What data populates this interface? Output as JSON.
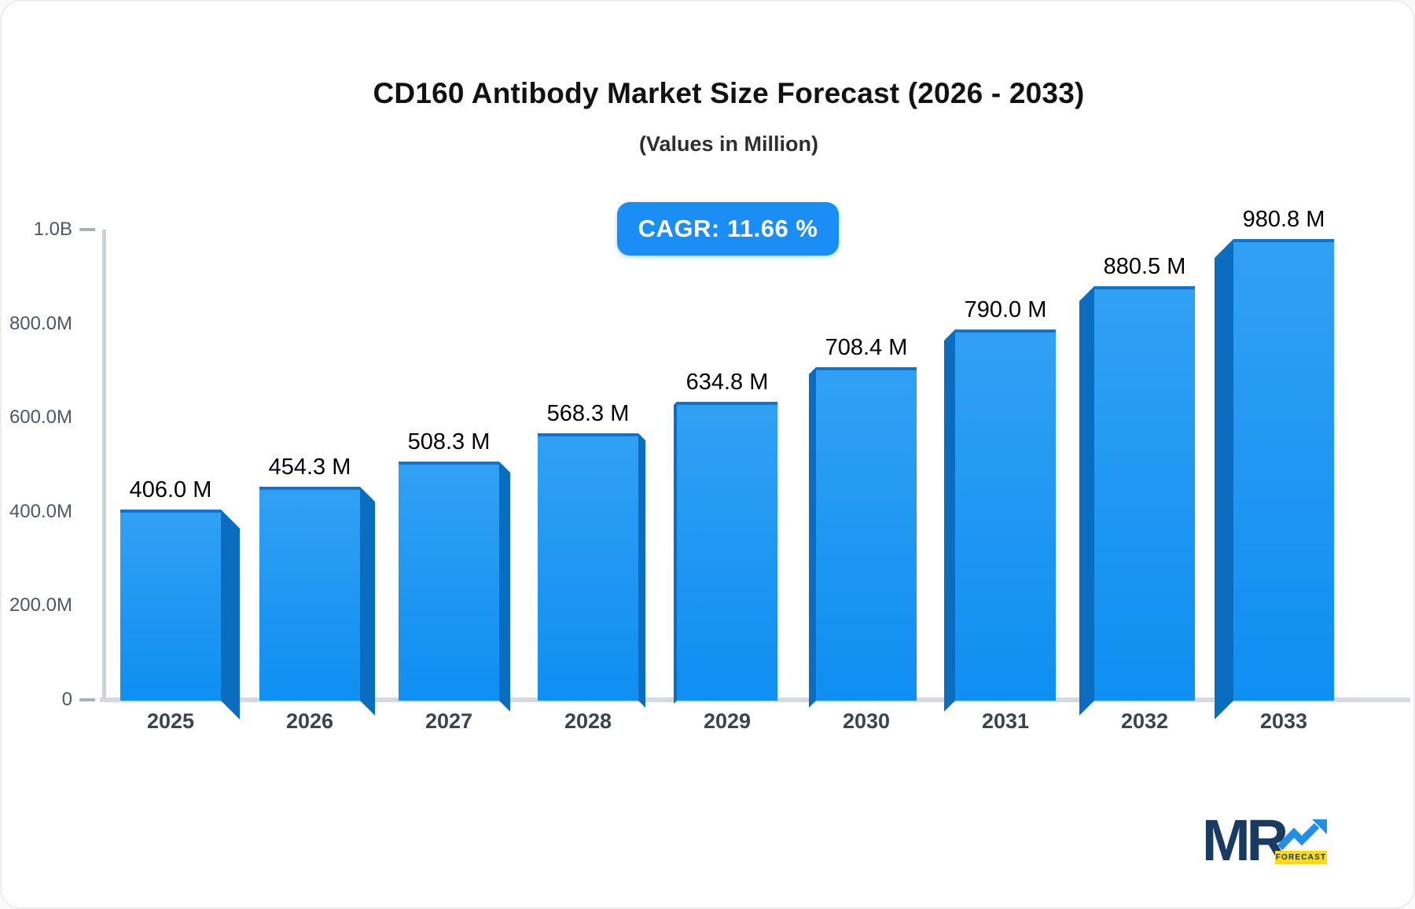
{
  "header": {
    "title": "CD160 Antibody Market Size Forecast (2026 - 2033)",
    "subtitle": "(Values in Million)",
    "cagr_badge": "CAGR: 11.66 %"
  },
  "chart_data": {
    "type": "bar",
    "title": "CD160 Antibody Market Size Forecast (2026 - 2033)",
    "subtitle": "(Values in Million)",
    "categories": [
      "2025",
      "2026",
      "2027",
      "2028",
      "2029",
      "2030",
      "2031",
      "2032",
      "2033"
    ],
    "values_millions": [
      406.0,
      454.3,
      508.3,
      568.3,
      634.8,
      708.4,
      790.0,
      880.5,
      980.8
    ],
    "bar_labels": [
      "406.0 M",
      "454.3 M",
      "508.3 M",
      "568.3 M",
      "634.8 M",
      "708.4 M",
      "790.0 M",
      "880.5 M",
      "980.8 M"
    ],
    "annotation": "CAGR: 11.66 %",
    "xlabel": "",
    "ylabel": "",
    "y_axis": {
      "ticks": [
        "1.0B",
        "800.0M",
        "600.0M",
        "400.0M",
        "200.0M",
        "0"
      ],
      "min_millions": 0,
      "max_millions": 1000,
      "gridlines": false
    },
    "legend": null,
    "style": "3d-perspective-bars"
  },
  "colors": {
    "bar_face_top": "#31a0f4",
    "bar_face_bottom": "#0e8ff2",
    "bar_top_edge": "#1173c9",
    "bar_side": "#0b6dc0",
    "badge_bg": "#1b8ef5",
    "badge_text": "#ffffff",
    "axis_line": "#ccd2da",
    "baseline": "#d6d9df",
    "axis_text": "#4d5765",
    "year_text": "#3a4350",
    "logo_navy": "#1a3b61",
    "logo_yellow": "#ffd912",
    "logo_arrow_blue": "#1f8fe9"
  },
  "logo": {
    "mr": "MR",
    "forecast": "FORECAST"
  }
}
